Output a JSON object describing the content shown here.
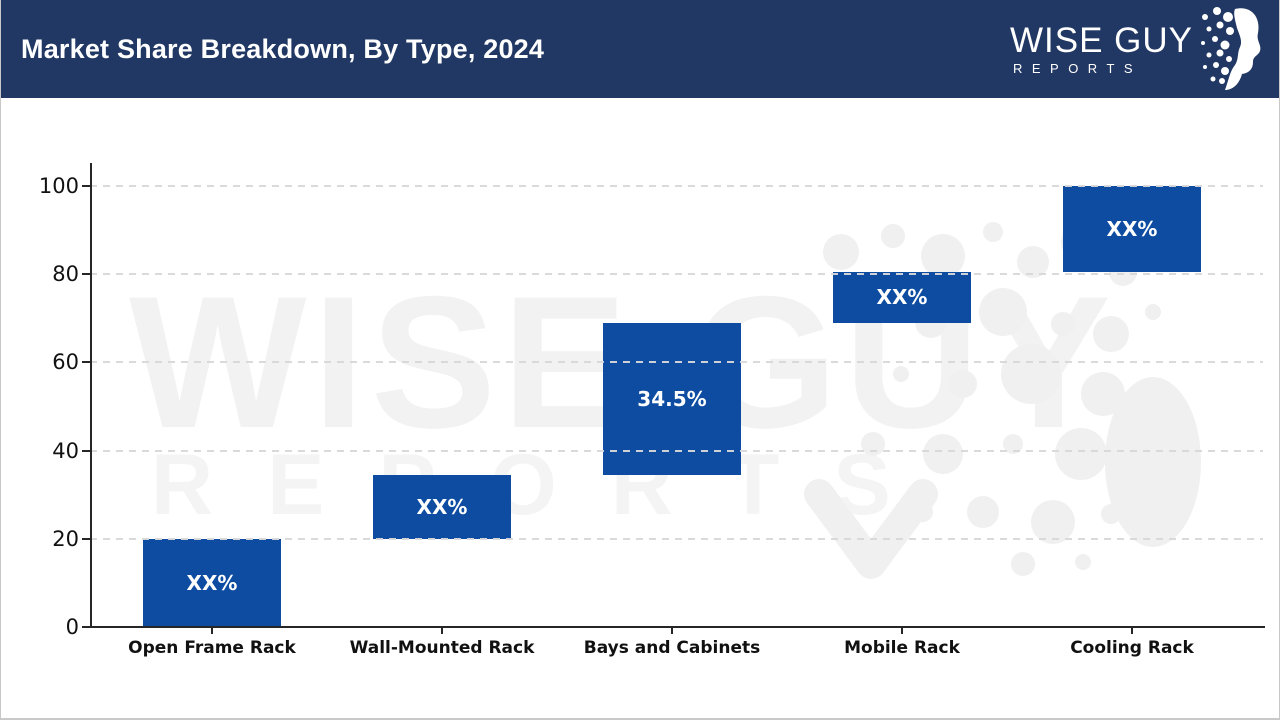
{
  "header": {
    "title": "Market Share Breakdown, By Type, 2024"
  },
  "logo": {
    "line1": "WISE GUY",
    "line2": "REPORTS"
  },
  "watermark": {
    "line1": "WISE GUY",
    "line2": "REPORTS"
  },
  "colors": {
    "header_bg": "#223864",
    "bar": "#0d4ca1",
    "grid": "#d8d8d8",
    "axis": "#262626",
    "watermark": "#f2f2f2"
  },
  "chart_data": {
    "type": "bar",
    "subtype": "waterfall-floating-bars",
    "title": "Market Share Breakdown, By Type, 2024",
    "xlabel": "",
    "ylabel": "",
    "ylim": [
      0,
      100
    ],
    "y_ticks": [
      0,
      20,
      40,
      60,
      80,
      100
    ],
    "grid": true,
    "legend": false,
    "categories": [
      "Open Frame Rack",
      "Wall-Mounted Rack",
      "Bays and Cabinets",
      "Mobile Rack",
      "Cooling Rack"
    ],
    "segments": [
      {
        "category": "Open Frame Rack",
        "start": 0,
        "end": 20,
        "label": "XX%"
      },
      {
        "category": "Wall-Mounted Rack",
        "start": 20,
        "end": 34.5,
        "label": "XX%"
      },
      {
        "category": "Bays and Cabinets",
        "start": 34.5,
        "end": 69,
        "label": "34.5%"
      },
      {
        "category": "Mobile Rack",
        "start": 69,
        "end": 80.5,
        "label": "XX%"
      },
      {
        "category": "Cooling Rack",
        "start": 80.5,
        "end": 100,
        "label": "XX%"
      }
    ],
    "bar_color": "#0d4ca1",
    "value_label_color": "#ffffff"
  }
}
